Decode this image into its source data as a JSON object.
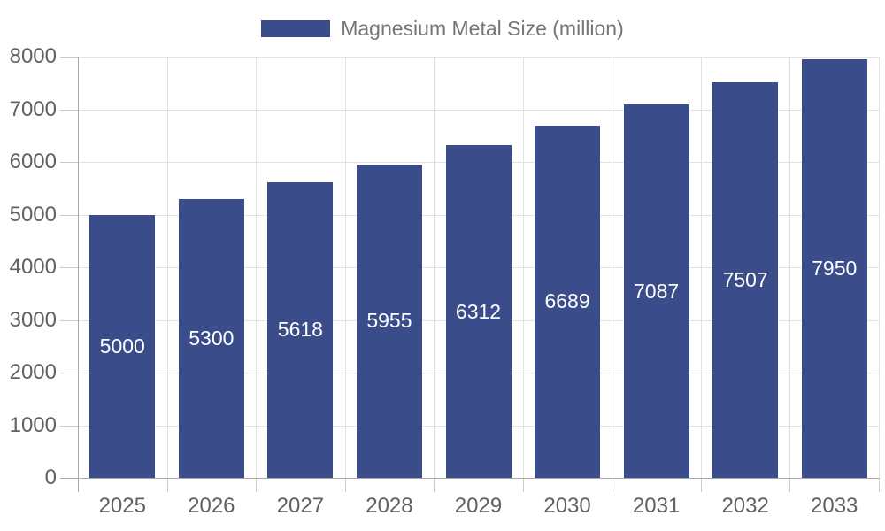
{
  "legend": {
    "label": "Magnesium Metal Size (million)"
  },
  "chart_data": {
    "type": "bar",
    "title": "Magnesium Metal Size (million)",
    "series_name": "Magnesium Metal Size (million)",
    "categories": [
      "2025",
      "2026",
      "2027",
      "2028",
      "2029",
      "2030",
      "2031",
      "2032",
      "2033"
    ],
    "values": [
      5000,
      5300,
      5618,
      5955,
      6312,
      6689,
      7087,
      7507,
      7950
    ],
    "value_labels": [
      "5000",
      "5300",
      "5618",
      "5955",
      "6312",
      "6689",
      "7087",
      "7507",
      "7950"
    ],
    "yticks": [
      0,
      1000,
      2000,
      3000,
      4000,
      5000,
      6000,
      7000,
      8000
    ],
    "ytick_labels": [
      "0",
      "1000",
      "2000",
      "3000",
      "4000",
      "5000",
      "6000",
      "7000",
      "8000"
    ],
    "ylim": [
      0,
      8000
    ],
    "xlabel": "",
    "ylabel": "",
    "grid": true,
    "legend_position": "top-center",
    "colors": {
      "bar": "#3a4d8a",
      "bar_value_text": "#ffffff",
      "axis_label_text": "#616161",
      "legend_text": "#757575",
      "gridline": "#e2e2e6",
      "axis_line": "#aaaaaa",
      "tick": "#cccccc"
    }
  }
}
